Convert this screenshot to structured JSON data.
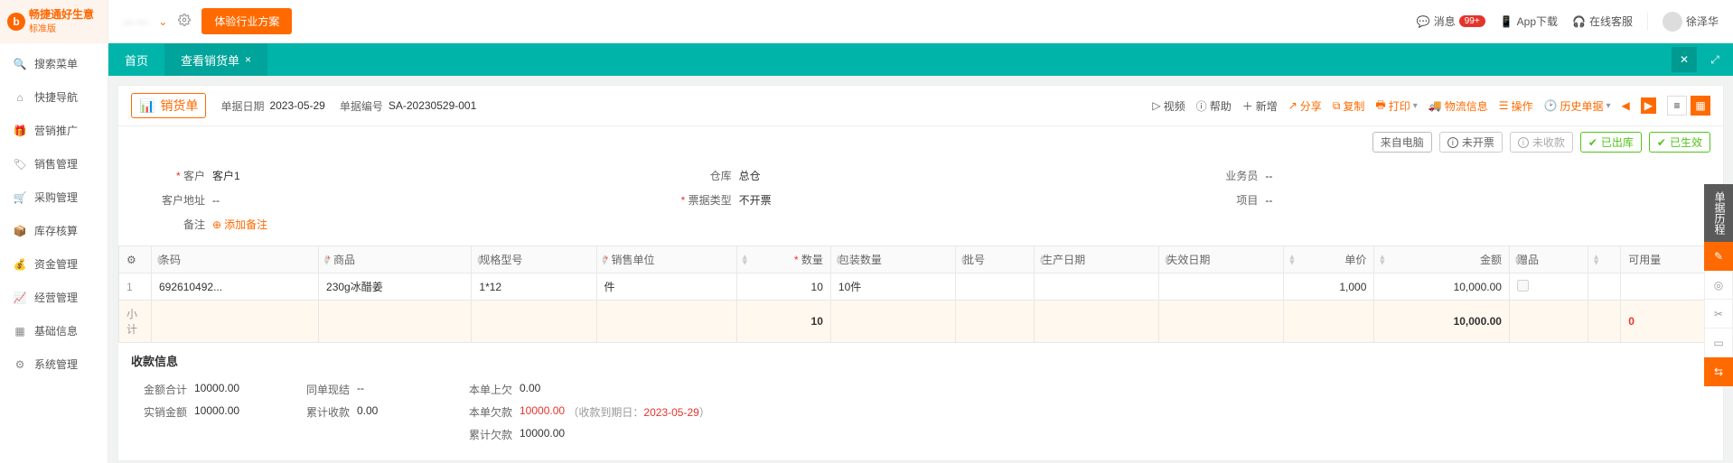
{
  "logo": {
    "name": "畅捷通好生意",
    "sub": "标准版"
  },
  "sidebar": {
    "items": [
      {
        "label": "搜索菜单",
        "icon": "search"
      },
      {
        "label": "快捷导航",
        "icon": "home"
      },
      {
        "label": "营销推广",
        "icon": "gift"
      },
      {
        "label": "销售管理",
        "icon": "tag"
      },
      {
        "label": "采购管理",
        "icon": "cart"
      },
      {
        "label": "库存核算",
        "icon": "box"
      },
      {
        "label": "资金管理",
        "icon": "money"
      },
      {
        "label": "经营管理",
        "icon": "chart"
      },
      {
        "label": "基础信息",
        "icon": "list"
      },
      {
        "label": "系统管理",
        "icon": "gear"
      }
    ]
  },
  "topbar": {
    "org": "— —",
    "experienceBtn": "体验行业方案",
    "messages": "消息",
    "badge": "99+",
    "appDownload": "App下载",
    "onlineService": "在线客服",
    "userName": "徐泽华"
  },
  "tabs": {
    "home": "首页",
    "active": "查看销货单"
  },
  "doc": {
    "title": "销货单",
    "dateLabel": "单据日期",
    "date": "2023-05-29",
    "noLabel": "单据编号",
    "no": "SA-20230529-001"
  },
  "toolbar": {
    "video": "视频",
    "help": "帮助",
    "new": "新增",
    "share": "分享",
    "copy": "复制",
    "print": "打印",
    "logistics": "物流信息",
    "operate": "操作",
    "history": "历史单据"
  },
  "status": {
    "source": "来自电脑",
    "notInvoiced": "未开票",
    "notReceived": "未收款",
    "outStock": "已出库",
    "effective": "已生效"
  },
  "form": {
    "customerLabel": "客户",
    "customer": "客户1",
    "warehouseLabel": "仓库",
    "warehouse": "总仓",
    "salesmanLabel": "业务员",
    "salesman": "--",
    "addressLabel": "客户地址",
    "address": "--",
    "receiptTypeLabel": "票据类型",
    "receiptType": "不开票",
    "projectLabel": "项目",
    "project": "--",
    "remarkLabel": "备注",
    "addRemark": "添加备注"
  },
  "table": {
    "headers": {
      "barcode": "条码",
      "product": "商品",
      "spec": "规格型号",
      "unit": "销售单位",
      "qty": "数量",
      "packQty": "包装数量",
      "batch": "批号",
      "prodDate": "生产日期",
      "expDate": "失效日期",
      "price": "单价",
      "amount": "金额",
      "gift": "赠品",
      "available": "可用量"
    },
    "rows": [
      {
        "idx": "1",
        "barcode": "692610492...",
        "product": "230g冰醋姜",
        "spec": "1*12",
        "unit": "件",
        "qty": "10",
        "packQty": "10件",
        "batch": "",
        "prodDate": "",
        "expDate": "",
        "price": "1,000",
        "amount": "10,000.00",
        "gift": false,
        "available": ""
      }
    ],
    "subtotal": {
      "label": "小计",
      "qty": "10",
      "amount": "10,000.00",
      "available": "0"
    }
  },
  "payment": {
    "title": "收款信息",
    "totalLabel": "金额合计",
    "total": "10000.00",
    "actualLabel": "实销金额",
    "actual": "10000.00",
    "sameCashLabel": "同单现结",
    "sameCash": "--",
    "cumRecvLabel": "累计收款",
    "cumRecv": "0.00",
    "prevOweLabel": "本单上欠",
    "prevOwe": "0.00",
    "thisOweLabel": "本单欠款",
    "thisOwe": "10000.00",
    "oweNote1": "（收款到期日：",
    "oweDate": "2023-05-29",
    "oweNote2": "）",
    "cumOweLabel": "累计欠款",
    "cumOwe": "10000.00"
  },
  "floatBar": {
    "label": "单据历程"
  }
}
